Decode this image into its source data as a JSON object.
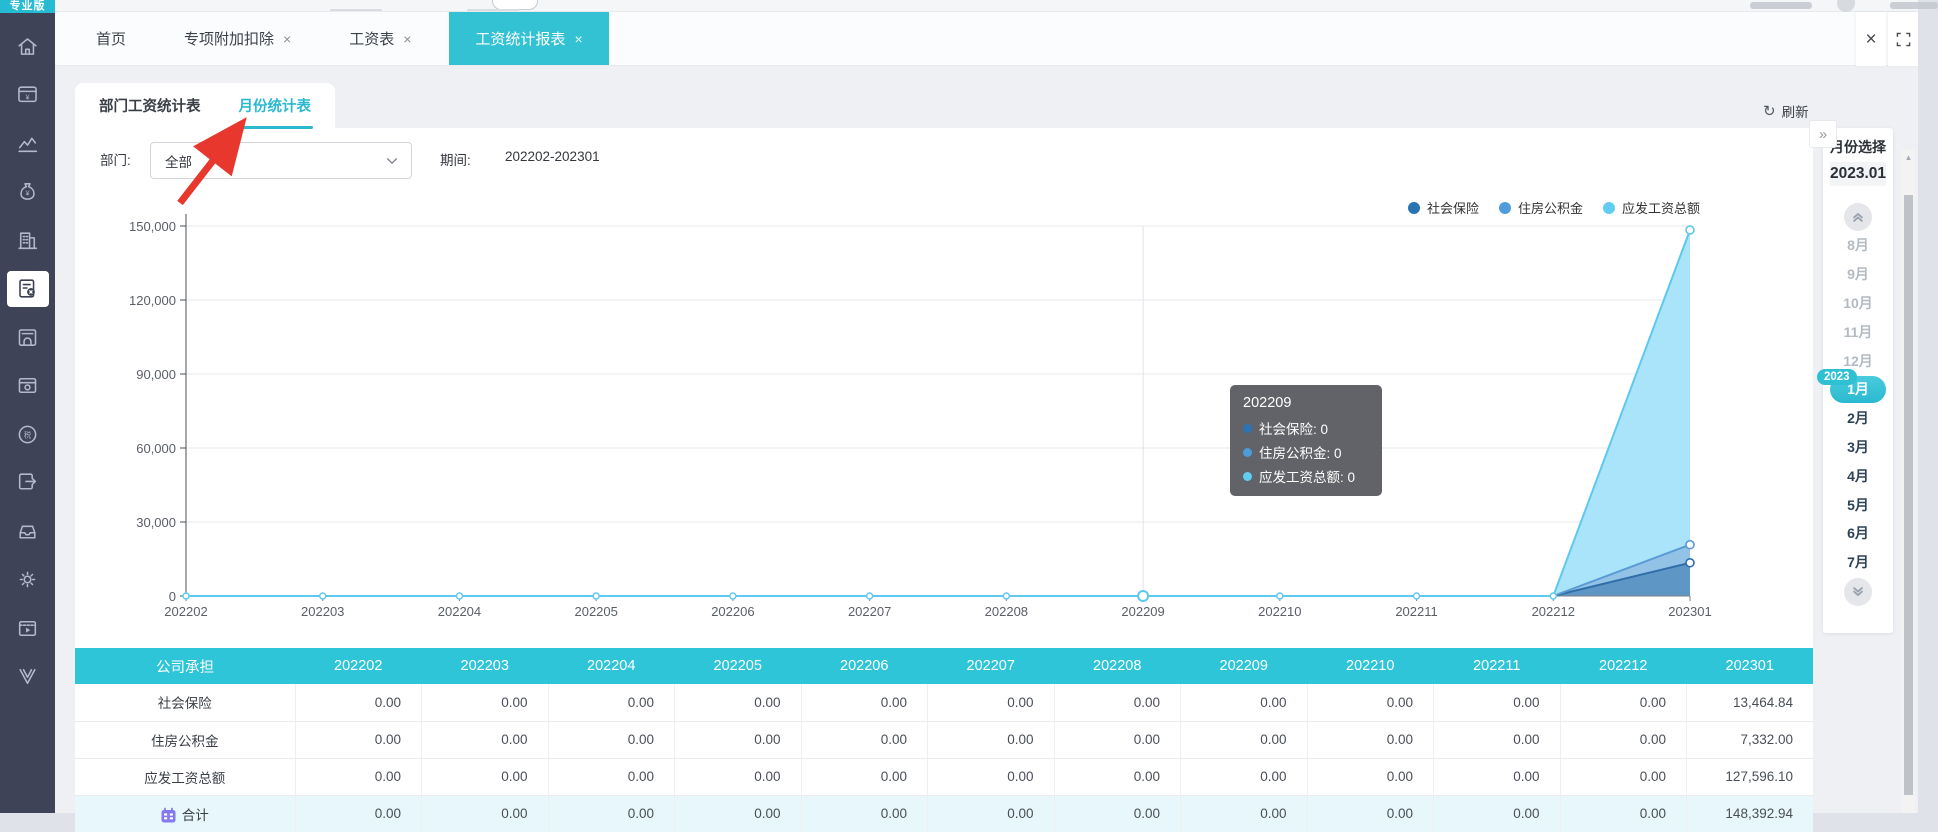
{
  "colors": {
    "accent_teal": "#2fc0d4",
    "sidebar_bg": "#3e4357",
    "table_header_bg": "#2ec5d8",
    "annotation_red": "#e8372c",
    "tooltip_bg": "#55575c"
  },
  "sidebar": {
    "badge": "专业版",
    "active_index": 5,
    "icons": [
      "home-icon",
      "voucher-icon",
      "line-chart-icon",
      "money-bag-icon",
      "company-icon",
      "report-stats-icon",
      "bank-icon",
      "salary-window-icon",
      "tax-icon",
      "transfer-out-icon",
      "inbox-icon",
      "settings-gear-icon",
      "video-icon",
      "v-logo-icon"
    ]
  },
  "window_controls": {
    "close_icon": "×",
    "fullscreen_icon": "fullscreen"
  },
  "tabs": [
    {
      "label": "首页",
      "closable": false,
      "active": false
    },
    {
      "label": "专项附加扣除",
      "closable": true,
      "active": false
    },
    {
      "label": "工资表",
      "closable": true,
      "active": false
    },
    {
      "label": "工资统计报表",
      "closable": true,
      "active": true
    }
  ],
  "subtabs": {
    "items": [
      {
        "label": "部门工资统计表",
        "active": false
      },
      {
        "label": "月份统计表",
        "active": true
      }
    ]
  },
  "toolbar": {
    "refresh_label": "刷新",
    "refresh_icon": "↻"
  },
  "filters": {
    "dept_label": "部门:",
    "dept_value": "全部",
    "period_label": "期间:",
    "period_value": "202202-202301"
  },
  "chart_data": {
    "type": "area",
    "stacked": true,
    "x": [
      "202202",
      "202203",
      "202204",
      "202205",
      "202206",
      "202207",
      "202208",
      "202209",
      "202210",
      "202211",
      "202212",
      "202301"
    ],
    "series": [
      {
        "name": "社会保险",
        "values": [
          0,
          0,
          0,
          0,
          0,
          0,
          0,
          0,
          0,
          0,
          0,
          13464.84
        ],
        "line_color": "#2f6ea8",
        "fill_color": "#5e96c5",
        "dot_color": "#2a74b5"
      },
      {
        "name": "住房公积金",
        "values": [
          0,
          0,
          0,
          0,
          0,
          0,
          0,
          0,
          0,
          0,
          0,
          7332.0
        ],
        "line_color": "#5b9bd5",
        "fill_color": "#92c3e6",
        "dot_color": "#4f9dd8"
      },
      {
        "name": "应发工资总额",
        "values": [
          0,
          0,
          0,
          0,
          0,
          0,
          0,
          0,
          0,
          0,
          0,
          127596.1
        ],
        "line_color": "#5fc8ee",
        "fill_color": "#a9e4fa",
        "dot_color": "#62cdf2"
      }
    ],
    "ylim": [
      0,
      150000
    ],
    "yticks": [
      0,
      30000,
      60000,
      90000,
      120000,
      150000
    ],
    "grid": true,
    "legend_position": "top-right",
    "hover_index": 7
  },
  "tooltip": {
    "title": "202209",
    "rows": [
      {
        "label": "社会保险",
        "value": "0"
      },
      {
        "label": "住房公积金",
        "value": "0"
      },
      {
        "label": "应发工资总额",
        "value": "0"
      }
    ]
  },
  "month_panel": {
    "collapse_icon": "»",
    "title": "月份选择",
    "current": "2023.01",
    "year_badge": "2023",
    "months": [
      {
        "label": "8月",
        "state": "dim"
      },
      {
        "label": "9月",
        "state": "dim"
      },
      {
        "label": "10月",
        "state": "dim"
      },
      {
        "label": "11月",
        "state": "dim"
      },
      {
        "label": "12月",
        "state": "dim"
      },
      {
        "label": "1月",
        "state": "selected"
      },
      {
        "label": "2月",
        "state": "normal"
      },
      {
        "label": "3月",
        "state": "normal"
      },
      {
        "label": "4月",
        "state": "normal"
      },
      {
        "label": "5月",
        "state": "normal"
      },
      {
        "label": "6月",
        "state": "normal"
      },
      {
        "label": "7月",
        "state": "normal"
      }
    ]
  },
  "table": {
    "header": [
      "公司承担",
      "202202",
      "202203",
      "202204",
      "202205",
      "202206",
      "202207",
      "202208",
      "202209",
      "202210",
      "202211",
      "202212",
      "202301"
    ],
    "rows": [
      {
        "label": "社会保险",
        "total": false,
        "values": [
          "0.00",
          "0.00",
          "0.00",
          "0.00",
          "0.00",
          "0.00",
          "0.00",
          "0.00",
          "0.00",
          "0.00",
          "0.00",
          "13,464.84"
        ]
      },
      {
        "label": "住房公积金",
        "total": false,
        "values": [
          "0.00",
          "0.00",
          "0.00",
          "0.00",
          "0.00",
          "0.00",
          "0.00",
          "0.00",
          "0.00",
          "0.00",
          "0.00",
          "7,332.00"
        ]
      },
      {
        "label": "应发工资总额",
        "total": false,
        "values": [
          "0.00",
          "0.00",
          "0.00",
          "0.00",
          "0.00",
          "0.00",
          "0.00",
          "0.00",
          "0.00",
          "0.00",
          "0.00",
          "127,596.10"
        ]
      },
      {
        "label": "合计",
        "total": true,
        "values": [
          "0.00",
          "0.00",
          "0.00",
          "0.00",
          "0.00",
          "0.00",
          "0.00",
          "0.00",
          "0.00",
          "0.00",
          "0.00",
          "148,392.94"
        ]
      }
    ]
  }
}
